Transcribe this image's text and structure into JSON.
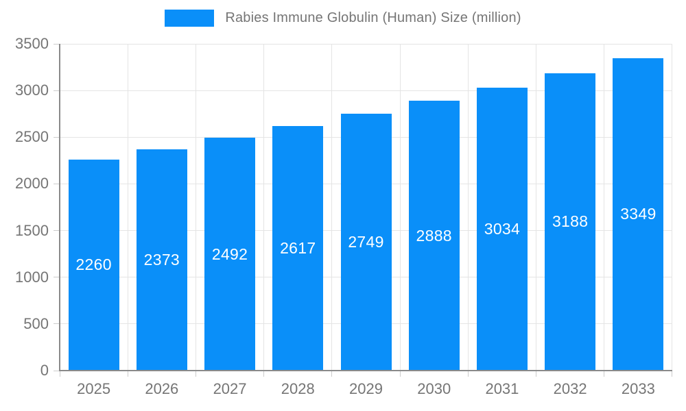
{
  "legend": {
    "label": "Rabies Immune Globulin (Human) Size (million)"
  },
  "chart_data": {
    "type": "bar",
    "title": "",
    "xlabel": "",
    "ylabel": "",
    "categories": [
      "2025",
      "2026",
      "2027",
      "2028",
      "2029",
      "2030",
      "2031",
      "2032",
      "2033"
    ],
    "series": [
      {
        "name": "Rabies Immune Globulin (Human) Size (million)",
        "values": [
          2260,
          2373,
          2492,
          2617,
          2749,
          2888,
          3034,
          3188,
          3349
        ]
      }
    ],
    "value_labels": [
      "2260",
      "2373",
      "2492",
      "2617",
      "2749",
      "2888",
      "3034",
      "3188",
      "3349"
    ],
    "ylim": [
      0,
      3500
    ],
    "ytick_step": 500,
    "ytick_labels": [
      "0",
      "500",
      "1000",
      "1500",
      "2000",
      "2500",
      "3000",
      "3500"
    ],
    "grid": true,
    "legend_position": "top",
    "colors": {
      "bar": "#0a8ff9",
      "value_label": "#ffffff",
      "axis_line": "#8a8a8a",
      "gridline": "#e4e4e4",
      "tick": "#cccccc",
      "axis_text": "#757575",
      "background": "#ffffff"
    }
  }
}
